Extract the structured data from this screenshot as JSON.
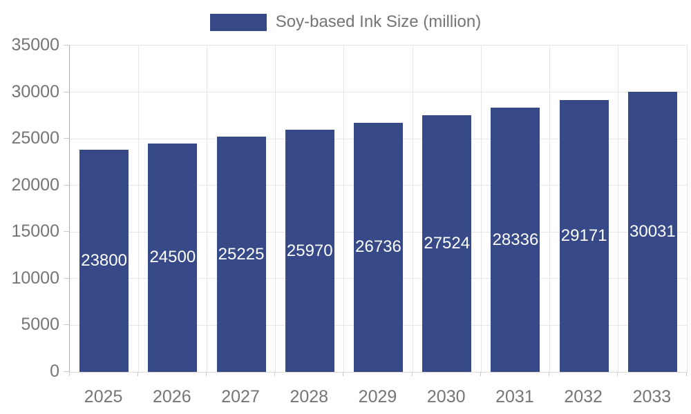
{
  "legend": {
    "items": [
      {
        "label": "Soy-based Ink Size (million)",
        "swatch_color": "#374a87"
      }
    ]
  },
  "chart_data": {
    "type": "bar",
    "title": "Soy-based Ink Size (million)",
    "series_name": "Soy-based Ink Size (million)",
    "categories": [
      "2025",
      "2026",
      "2027",
      "2028",
      "2029",
      "2030",
      "2031",
      "2032",
      "2033"
    ],
    "values": [
      23800,
      24500,
      25225,
      25970,
      26736,
      27524,
      28336,
      29171,
      30031
    ],
    "xlabel": "",
    "ylabel": "",
    "ylim": [
      0,
      35000
    ],
    "yticks": [
      0,
      5000,
      10000,
      15000,
      20000,
      25000,
      30000,
      35000
    ],
    "grid": true,
    "legend_position": "top",
    "value_label_position": "center"
  },
  "style": {
    "bar_color": "#374a87",
    "value_label_color": "#ffffff",
    "axis_text_color": "#757575",
    "grid_color": "#e6e6e6",
    "axis_line_color": "#ababab",
    "background": "#ffffff"
  }
}
